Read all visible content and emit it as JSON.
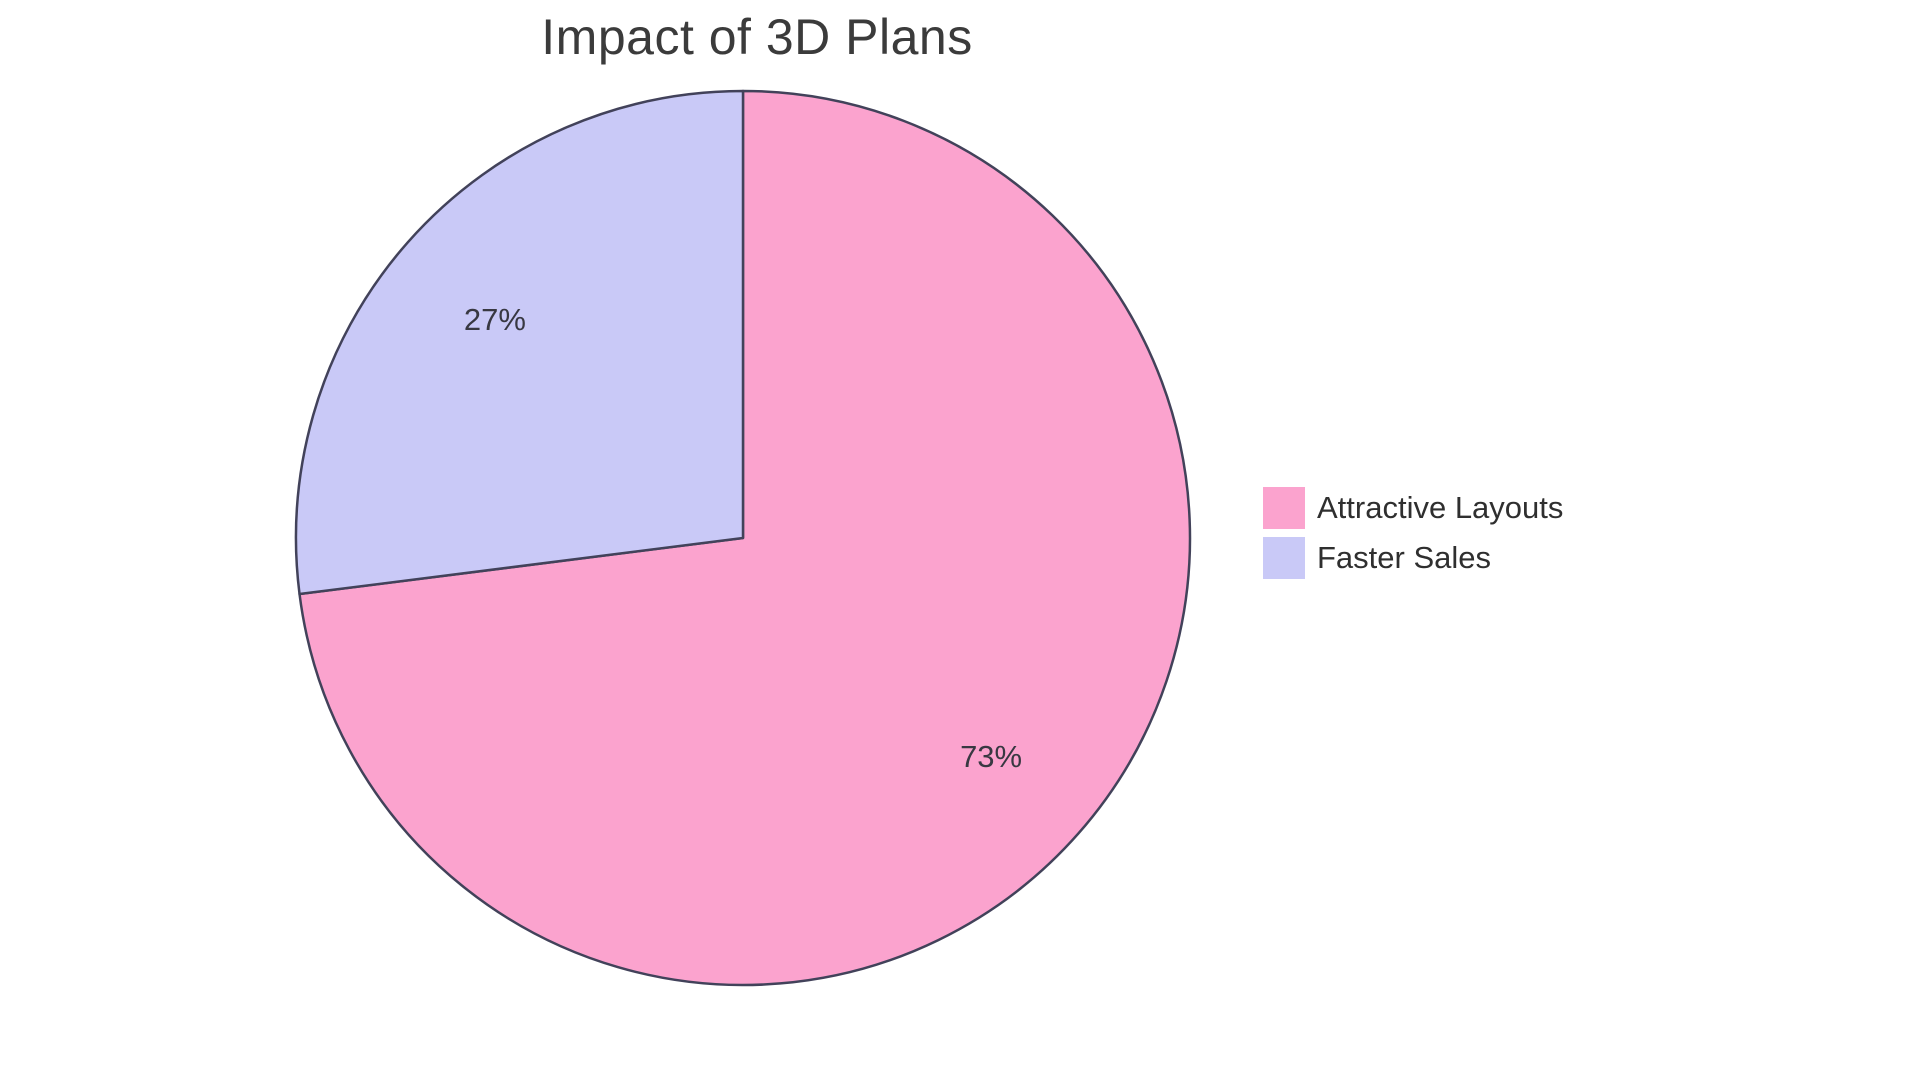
{
  "page": {
    "background_color": "#FFFFFF"
  },
  "chart_data": {
    "type": "pie",
    "title": "Impact of 3D Plans",
    "slices": [
      {
        "label": "Attractive Layouts",
        "value": 73,
        "display": "73%",
        "color": "#FBA3CE"
      },
      {
        "label": "Faster Sales",
        "value": 27,
        "display": "27%",
        "color": "#C9C9F7"
      }
    ],
    "direction": "clockwise",
    "start_angle": "top",
    "stroke_color": "#42425A",
    "stroke_width": 2.5,
    "percent_label_color": "#383842",
    "title_color": "#3B3B3B",
    "legend": {
      "position": "right",
      "entries": [
        "Attractive Layouts",
        "Faster Sales"
      ]
    }
  }
}
